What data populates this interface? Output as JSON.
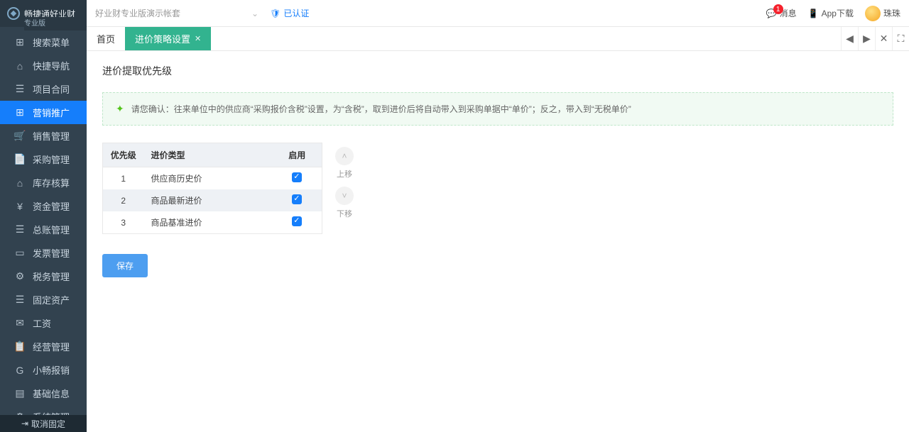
{
  "brand": {
    "name": "畅捷通好业财",
    "edition": "专业版"
  },
  "sidebar": {
    "items": [
      {
        "label": "搜索菜单",
        "icon": "⊞"
      },
      {
        "label": "快捷导航",
        "icon": "⌂"
      },
      {
        "label": "项目合同",
        "icon": "☰"
      },
      {
        "label": "营销推广",
        "icon": "⊞",
        "active": true
      },
      {
        "label": "销售管理",
        "icon": "🛒"
      },
      {
        "label": "采购管理",
        "icon": "📄"
      },
      {
        "label": "库存核算",
        "icon": "⌂"
      },
      {
        "label": "资金管理",
        "icon": "¥"
      },
      {
        "label": "总账管理",
        "icon": "☰"
      },
      {
        "label": "发票管理",
        "icon": "▭"
      },
      {
        "label": "税务管理",
        "icon": "⚙"
      },
      {
        "label": "固定资产",
        "icon": "☰"
      },
      {
        "label": "工资",
        "icon": "✉"
      },
      {
        "label": "经营管理",
        "icon": "📋"
      },
      {
        "label": "小畅报销",
        "icon": "G"
      },
      {
        "label": "基础信息",
        "icon": "▤"
      },
      {
        "label": "系统管理",
        "icon": "⚙"
      }
    ],
    "footer": "取消固定"
  },
  "topbar": {
    "instance": "好业财专业版演示帐套",
    "verified": "已认证",
    "messages": {
      "label": "消息",
      "count": "1"
    },
    "download": "App下载",
    "user": "珠珠"
  },
  "tabs": {
    "home": "首页",
    "active": "进价策略设置"
  },
  "page": {
    "title": "进价提取优先级",
    "notice": "请您确认：往来单位中的供应商“采购报价含税”设置，为“含税”，取到进价后将自动带入到采购单据中“单价”；反之，带入到“无税单价”",
    "columns": {
      "priority": "优先级",
      "type": "进价类型",
      "enabled": "启用"
    },
    "rows": [
      {
        "priority": "1",
        "type": "供应商历史价",
        "enabled": true
      },
      {
        "priority": "2",
        "type": "商品最新进价",
        "enabled": true
      },
      {
        "priority": "3",
        "type": "商品基准进价",
        "enabled": true
      }
    ],
    "moveUp": "上移",
    "moveDown": "下移",
    "save": "保存"
  },
  "colors": {
    "sidebar_bg": "#32424f",
    "sidebar_active": "#157efb",
    "tab_active": "#32b38f",
    "notice_border": "#bfe6c9",
    "notice_bg": "#f1faf3",
    "save_btn": "#4d9ef0",
    "table_header_bg": "#eef1f5"
  }
}
